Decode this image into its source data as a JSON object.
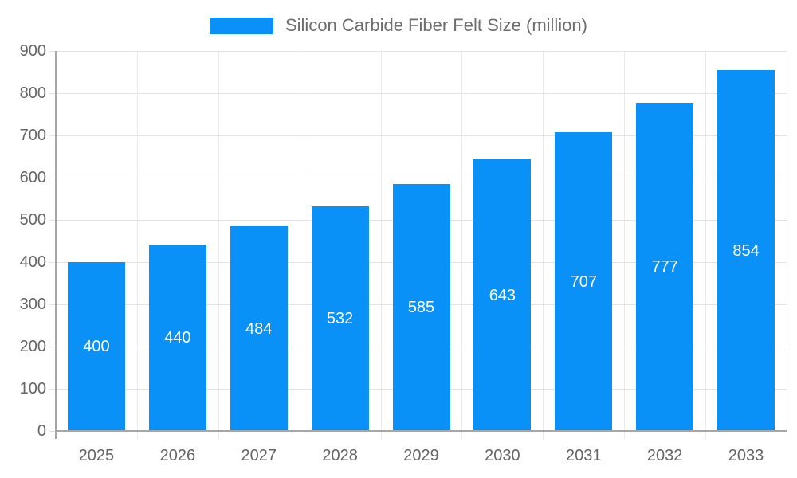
{
  "chart_data": {
    "type": "bar",
    "title": "Silicon Carbide Fiber Felt Size (million)",
    "categories": [
      "2025",
      "2026",
      "2027",
      "2028",
      "2029",
      "2030",
      "2031",
      "2032",
      "2033"
    ],
    "values": [
      400,
      440,
      484,
      532,
      585,
      643,
      707,
      777,
      854
    ],
    "ytick_labels": [
      "0",
      "100",
      "200",
      "300",
      "400",
      "500",
      "600",
      "700",
      "800",
      "900"
    ],
    "ylim": [
      0,
      900
    ],
    "ytick_step": 100,
    "grid": true,
    "legend_position": "top-center",
    "value_labels": "inside-center",
    "colors": {
      "bar": "#0a91f8",
      "value_label": "#ffffff",
      "axis_text": "#666666",
      "legend_text": "#6e6e6e",
      "gridline": "#e3e3e3",
      "axis_line": "#a6a6a6"
    }
  }
}
